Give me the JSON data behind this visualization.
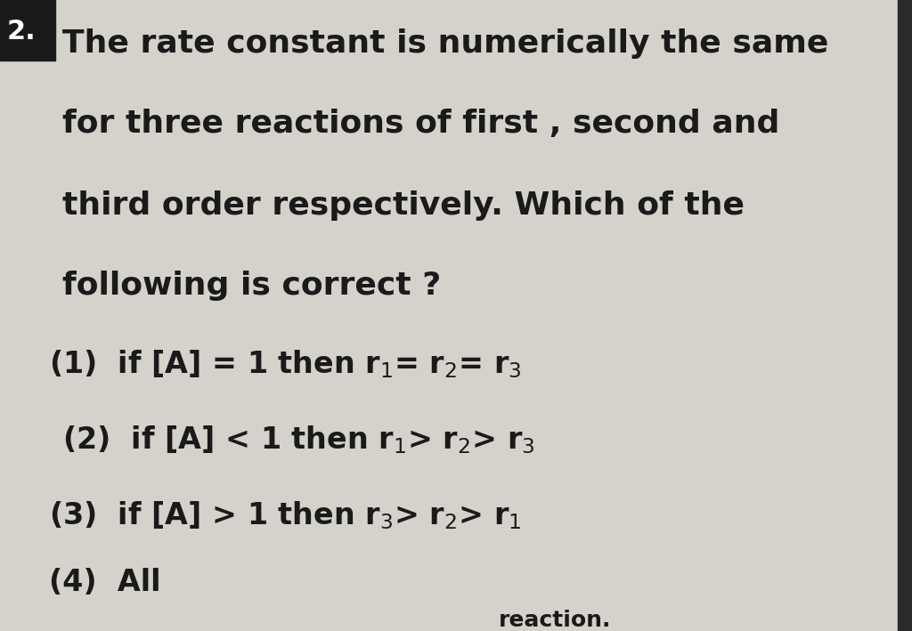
{
  "bg_color": "#c8c6be",
  "text_color": "#1a1a1a",
  "question_number": "2.",
  "question_text_lines": [
    "The rate constant is numerically the same",
    "for three reactions of first , second and",
    "third order respectively. Which of the",
    "following is correct ?"
  ],
  "opt1": "(1)  if [A] = 1 then r$_1$= r$_2$= r$_3$",
  "opt2": "(2)  if [A] < 1 then r$_1$> r$_2$> r$_3$",
  "opt3": "(3)  if [A] > 1 then r$_3$> r$_2$> r$_1$",
  "opt4": "(4)  All",
  "footer_text": "reaction.",
  "dark_box_color": "#1a1a1a",
  "right_bar_color": "#2a2a2a",
  "paper_color": "#d4d2ca"
}
